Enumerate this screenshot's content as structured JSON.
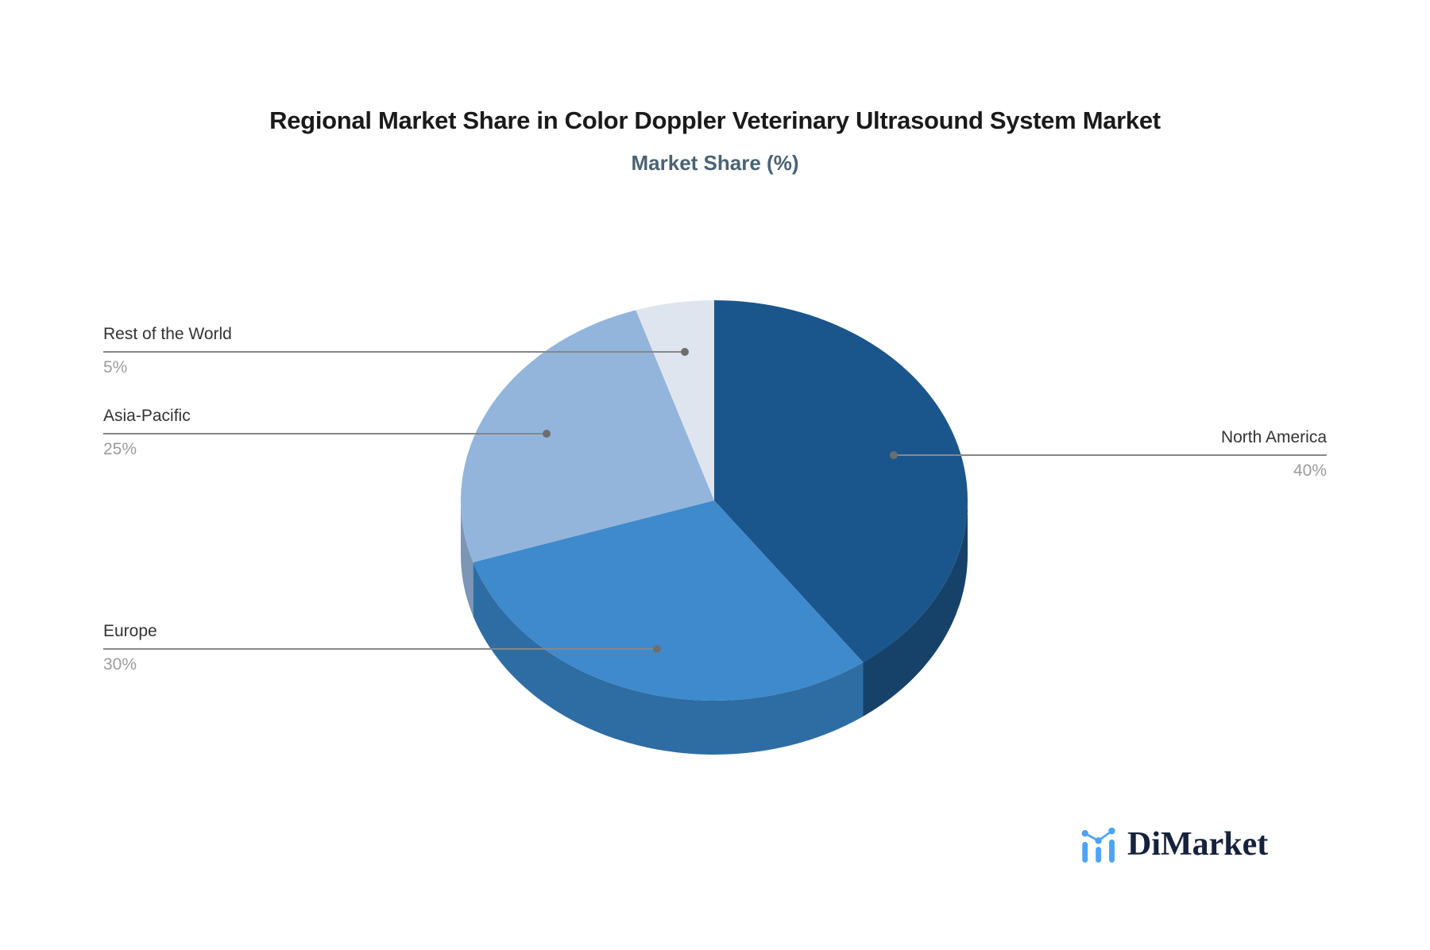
{
  "header": {
    "title": "Regional Market Share in Color Doppler Veterinary Ultrasound System Market",
    "subtitle": "Market Share (%)"
  },
  "chart_data": {
    "type": "pie",
    "style": "3d",
    "title": "Regional Market Share in Color Doppler Veterinary Ultrasound System Market",
    "value_label": "Market Share (%)",
    "unit": "%",
    "start_angle_deg": 0,
    "direction": "clockwise",
    "slices": [
      {
        "label": "North America",
        "value": 40,
        "display": "40%",
        "color": "#1A568C",
        "side_color": "#164269"
      },
      {
        "label": "Europe",
        "value": 30,
        "display": "30%",
        "color": "#3E8ACC",
        "side_color": "#2E6DA3"
      },
      {
        "label": "Asia-Pacific",
        "value": 25,
        "display": "25%",
        "color": "#93B5DB",
        "side_color": "#7C96B5"
      },
      {
        "label": "Rest of the World",
        "value": 5,
        "display": "5%",
        "color": "#DFE5EF",
        "side_color": "#C3CDDB"
      }
    ],
    "callout_line_color": "#878787",
    "callout_dot_color": "#6e6e6e"
  },
  "branding": {
    "logo_text": "DiMarket",
    "logo_icon": "bar-line-chart-icon"
  }
}
